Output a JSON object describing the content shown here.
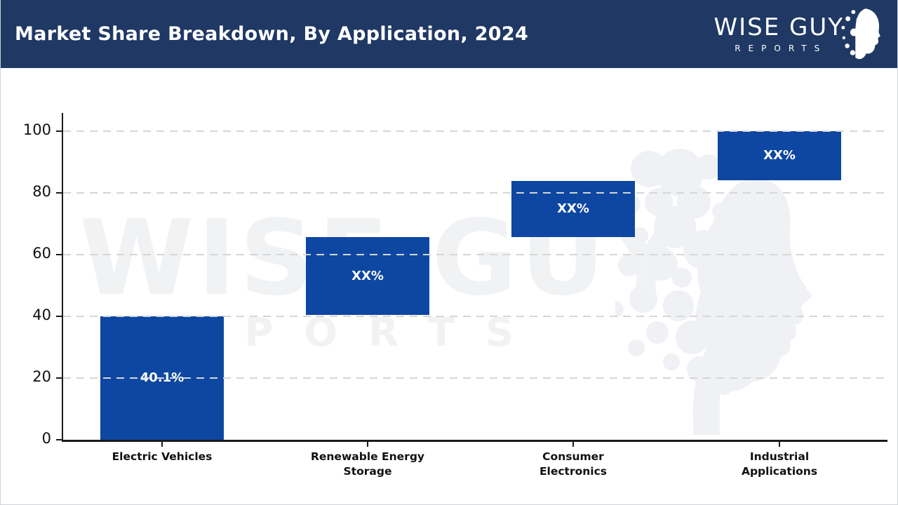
{
  "header": {
    "title": "Market Share Breakdown, By Application, 2024",
    "brand_line1": "WISE GUY",
    "brand_line2": "REPORTS",
    "bg_color": "#1f3864"
  },
  "watermark": {
    "line1": "WISE GUY",
    "line2": "REPORTS"
  },
  "chart_data": {
    "type": "bar",
    "subtype": "floating-waterfall",
    "title": "Market Share Breakdown, By Application, 2024",
    "xlabel": "",
    "ylabel": "",
    "ylim": [
      0,
      100
    ],
    "yticks": [
      0,
      20,
      40,
      60,
      80,
      100
    ],
    "grid": "horizontal-dashed",
    "legend_position": "none",
    "bar_color": "#0d47a1",
    "categories": [
      "Electric Vehicles",
      "Renewable Energy Storage",
      "Consumer Electronics",
      "Industrial Applications"
    ],
    "category_label_lines": [
      [
        "Electric Vehicles"
      ],
      [
        "Renewable Energy",
        "Storage"
      ],
      [
        "Consumer",
        "Electronics"
      ],
      [
        "Industrial",
        "Applications"
      ]
    ],
    "segments": [
      {
        "category": "Electric Vehicles",
        "start": 0,
        "end": 40.1,
        "label": "40.1%"
      },
      {
        "category": "Renewable Energy Storage",
        "start": 40.5,
        "end": 65.7,
        "label": "XX%"
      },
      {
        "category": "Consumer Electronics",
        "start": 65.7,
        "end": 83.9,
        "label": "XX%"
      },
      {
        "category": "Industrial Applications",
        "start": 84.1,
        "end": 100,
        "label": "XX%"
      }
    ]
  }
}
